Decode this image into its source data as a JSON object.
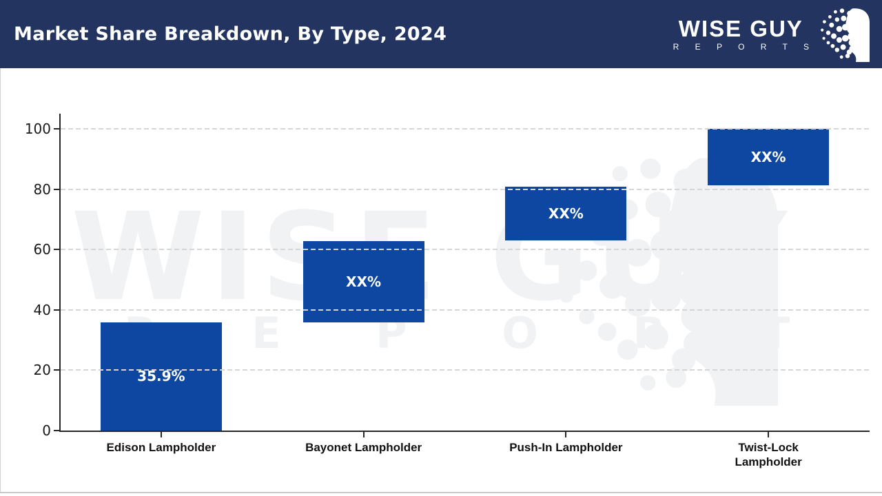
{
  "header": {
    "title": "Market Share Breakdown, By Type, 2024",
    "logo": {
      "wordmark": "WISE GUY",
      "subtitle": "REPORTS",
      "bg_color": "#22345f"
    }
  },
  "watermark": {
    "wordmark": "WISE GUY",
    "subtitle": "REPORTS"
  },
  "chart_data": {
    "type": "bar",
    "subtype": "floating-stacked-waterfall",
    "title": "Market Share Breakdown, By Type, 2024",
    "categories": [
      "Edison Lampholder",
      "Bayonet Lampholder",
      "Push-In Lampholder",
      "Twist-Lock Lampholder"
    ],
    "series": [
      {
        "name": "Market share %",
        "cumulative_ranges": [
          [
            0,
            35.9
          ],
          [
            35.9,
            62.8
          ],
          [
            63.0,
            80.8
          ],
          [
            81.3,
            100
          ]
        ],
        "bar_labels": [
          "35.9%",
          "XX%",
          "XX%",
          "XX%"
        ]
      }
    ],
    "xlabel": "",
    "ylabel": "",
    "ylim": [
      0,
      100
    ],
    "yticks": [
      0,
      20,
      40,
      60,
      80,
      100
    ],
    "grid": "horizontal dashed, drawn above bars",
    "legend": "none",
    "bar_color": "#0d47a1",
    "gridline_color": "#d6d6d6",
    "axis_color": "#262626"
  }
}
